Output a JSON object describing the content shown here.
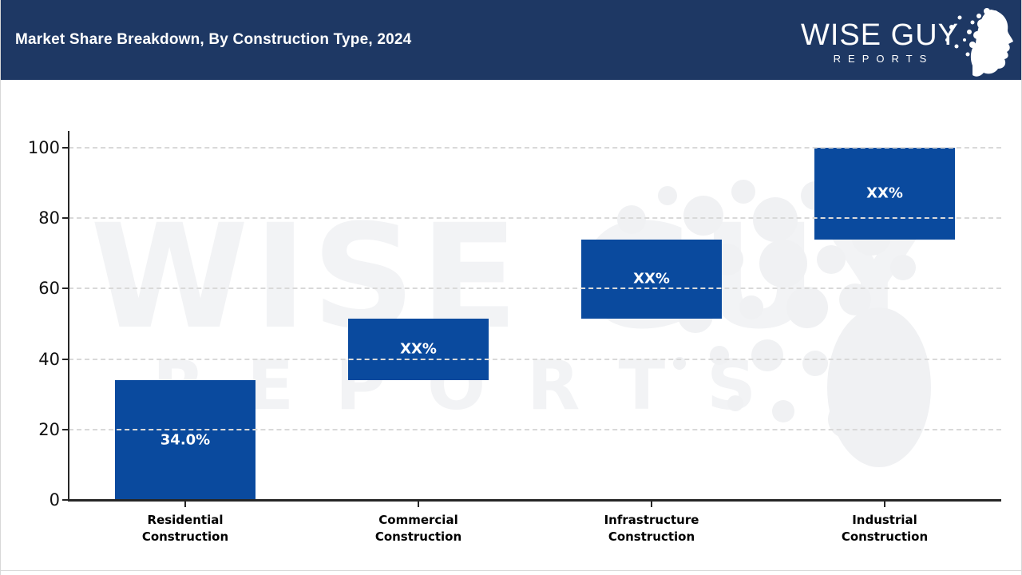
{
  "header": {
    "title": "Market Share Breakdown, By Construction Type, 2024",
    "logo": {
      "line1": "WISE GUY",
      "line2": "REPORTS"
    }
  },
  "watermark": {
    "line1": "WISE GUY",
    "line2": "REPORTS"
  },
  "chart_data": {
    "type": "bar",
    "subtype": "floating-segment-waterfall",
    "title": "Market Share Breakdown, By Construction Type, 2024",
    "categories": [
      [
        "Residential",
        "Construction"
      ],
      [
        "Commercial",
        "Construction"
      ],
      [
        "Infrastructure",
        "Construction"
      ],
      [
        "Industrial",
        "Construction"
      ]
    ],
    "segments": [
      {
        "category": "Residential Construction",
        "start": 0,
        "end": 34,
        "label": "34.0%"
      },
      {
        "category": "Commercial Construction",
        "start": 34,
        "end": 51.5,
        "label": "XX%"
      },
      {
        "category": "Infrastructure Construction",
        "start": 51.5,
        "end": 74,
        "label": "XX%"
      },
      {
        "category": "Industrial Construction",
        "start": 74,
        "end": 100,
        "label": "XX%"
      }
    ],
    "ylim": [
      0,
      100
    ],
    "yticks": [
      0,
      20,
      40,
      60,
      80,
      100
    ],
    "xlabel": "",
    "ylabel": "",
    "grid": "horizontal-dashed",
    "legend": "none"
  },
  "colors": {
    "header_bg": "#1e3864",
    "bar": "#0a4a9e",
    "grid": "#d9d9d9",
    "axis": "#262626",
    "bar_label": "#ffffff",
    "watermark": "#f2f3f5"
  }
}
